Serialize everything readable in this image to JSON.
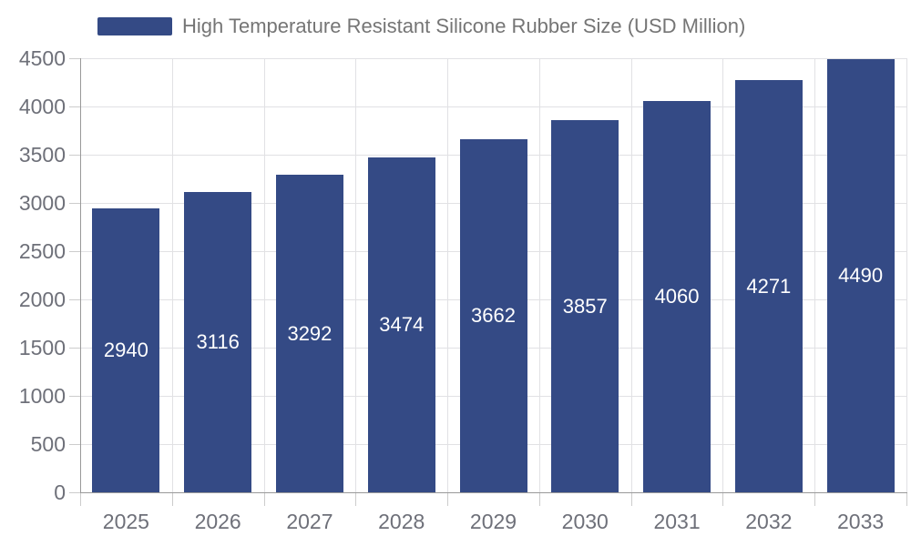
{
  "chart_data": {
    "type": "bar",
    "title": "High Temperature Resistant Silicone Rubber Size (USD Million)",
    "categories": [
      "2025",
      "2026",
      "2027",
      "2028",
      "2029",
      "2030",
      "2031",
      "2032",
      "2033"
    ],
    "series": [
      {
        "name": "High Temperature Resistant Silicone Rubber Size (USD Million)",
        "values": [
          2940,
          3116,
          3292,
          3474,
          3662,
          3857,
          4060,
          4271,
          4490
        ]
      }
    ],
    "xlabel": "",
    "ylabel": "",
    "ylim": [
      0,
      4500
    ],
    "ytick_step": 500,
    "grid": true,
    "legend_position": "top",
    "colors": {
      "bar": "#344A85",
      "bar_value_label": "#FFFFFF",
      "axis_label": "#6E7079",
      "legend_text": "#757575",
      "gridline": "#E1E1E4",
      "axis_line": "#999999",
      "tick": "#CCCCCC",
      "background": "#FFFFFF"
    }
  }
}
